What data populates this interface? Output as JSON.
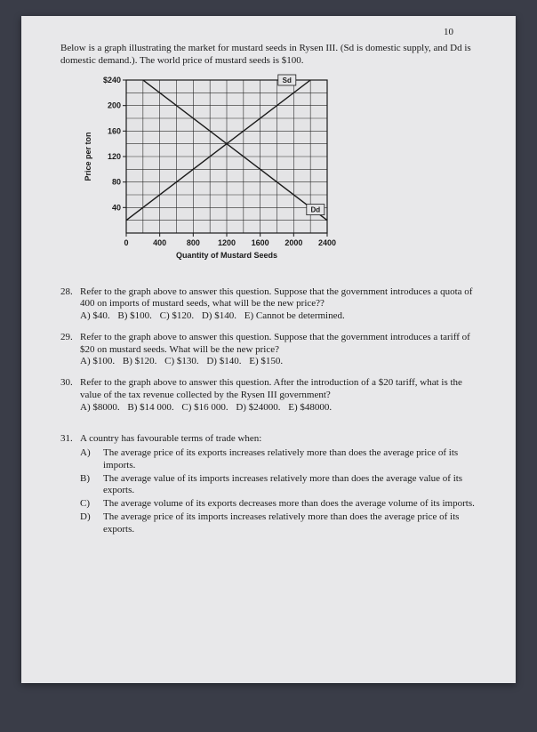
{
  "page_number": "10",
  "intro": "Below is a graph illustrating the market for mustard seeds in Rysen III. (Sd is domestic supply, and Dd is domestic demand.). The world price of mustard seeds is $100.",
  "chart": {
    "type": "line",
    "xlabel": "Quantity of Mustard Seeds",
    "ylabel": "Price per ton",
    "xlim": [
      0,
      2400
    ],
    "ylim": [
      0,
      240
    ],
    "xticks": [
      0,
      400,
      800,
      1200,
      1600,
      2000,
      2400
    ],
    "yticks": [
      40,
      80,
      120,
      160,
      200,
      240
    ],
    "ytick_labels": [
      "40",
      "80",
      "120",
      "160",
      "200",
      "$240"
    ],
    "minor_vlines_per_cell": 1,
    "minor_hlines_per_cell": 1,
    "grid_color": "#2a2a2a",
    "background_color": "#e4e4e6",
    "axis_color": "#1a1a1a",
    "line_color": "#1a1a1a",
    "line_width": 1.4,
    "series": {
      "Sd": {
        "label": "Sd",
        "points": [
          [
            0,
            20
          ],
          [
            2200,
            240
          ]
        ]
      },
      "Dd": {
        "label": "Dd",
        "points": [
          [
            0,
            260
          ],
          [
            2400,
            20
          ]
        ]
      }
    },
    "label_fontsize": 9,
    "tick_fontsize": 9
  },
  "questions": [
    {
      "num": "28.",
      "text": "Refer to the graph above to answer this question. Suppose that the government introduces a quota of 400 on imports of mustard seeds, what will be the new price??",
      "options_inline": [
        "A) $40.",
        "B) $100.",
        "C) $120.",
        "D) $140.",
        "E) Cannot be determined."
      ]
    },
    {
      "num": "29.",
      "text": "Refer to the graph above to answer this question. Suppose that the government introduces a  tariff of $20 on mustard seeds.  What will be the new price?",
      "options_inline": [
        "A) $100.",
        "B) $120.",
        "C) $130.",
        "D) $140.",
        "E) $150."
      ]
    },
    {
      "num": "30.",
      "text": "Refer to the graph above to answer this question. After the introduction of a $20 tariff, what is the value of the tax revenue collected by the Rysen III government?",
      "options_inline": [
        "A) $8000.",
        "B) $14 000.",
        "C) $16 000.",
        "D) $24000.",
        "E) $48000."
      ]
    },
    {
      "num": "31.",
      "text": "A country has favourable terms of trade when:",
      "options_block": [
        {
          "label": "A)",
          "text": "The average price of its exports increases relatively more than does the average price of its imports."
        },
        {
          "label": "B)",
          "text": "The average value of its imports increases relatively more than does the average value of its exports."
        },
        {
          "label": "C)",
          "text": "The average volume of its exports decreases more than does the average volume of its imports."
        },
        {
          "label": "D)",
          "text": "The average price of its imports increases relatively more than does the average price of its exports."
        }
      ]
    }
  ]
}
